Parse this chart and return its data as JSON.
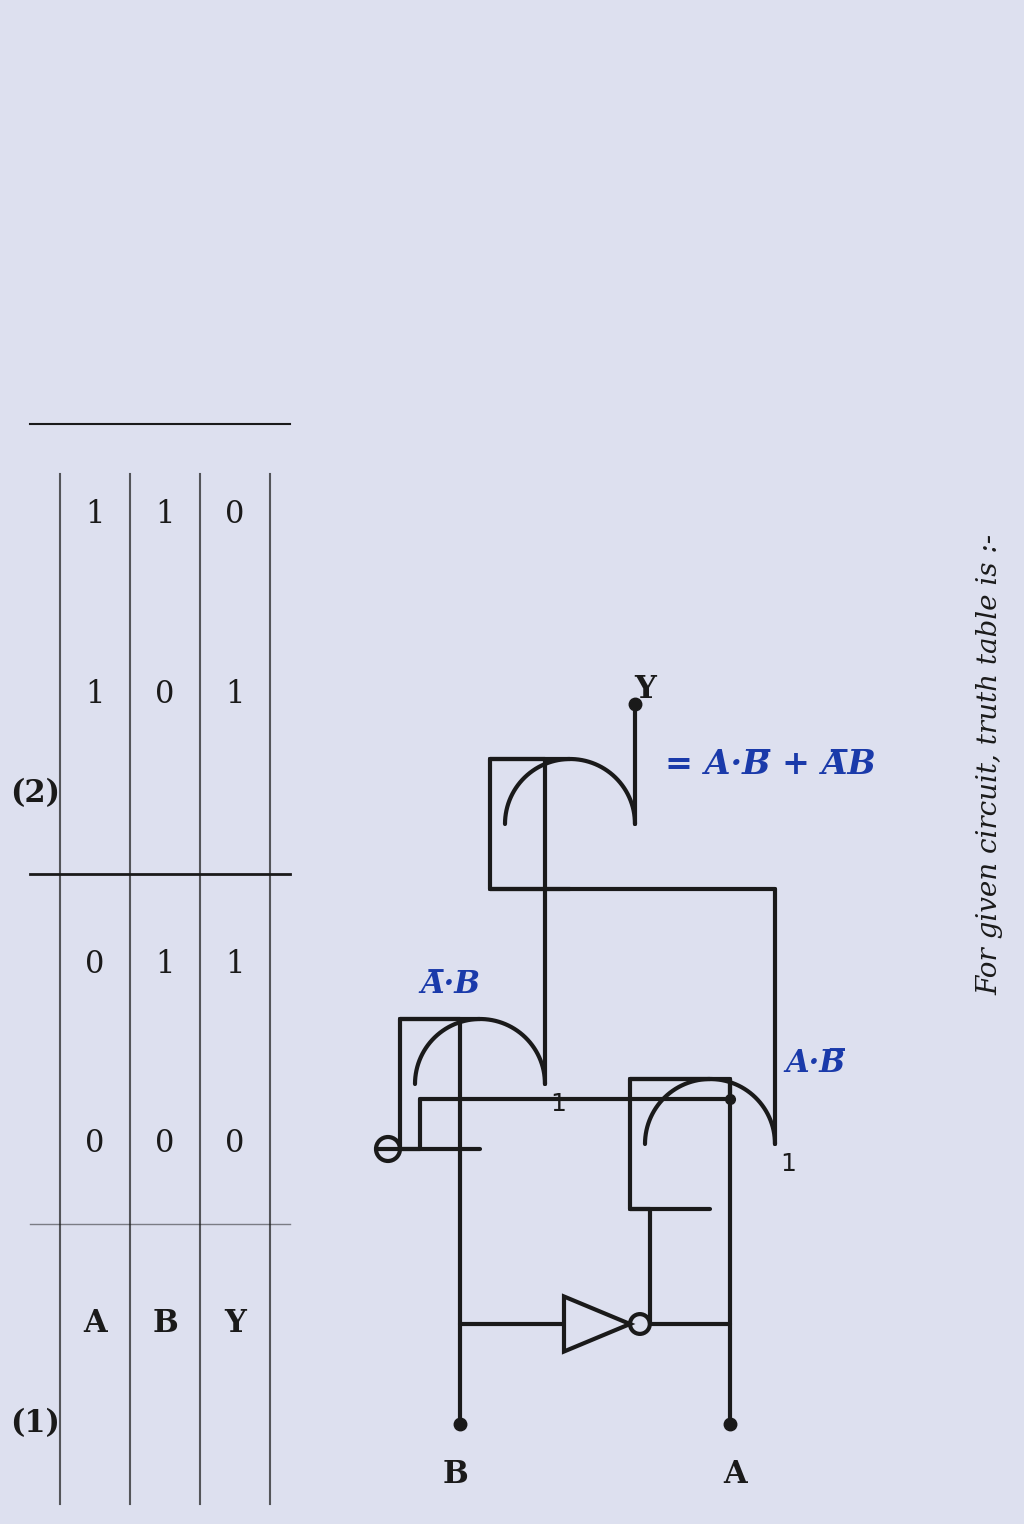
{
  "bg_color": "#cfd3e8",
  "paper_color": "#dde0ef",
  "black": "#1a1a1a",
  "blue": "#1a3aaa",
  "title": "For given circuit, truth table is :-",
  "label_A": "A",
  "label_B": "B",
  "label_Y": "Y",
  "label_1": "1",
  "gate1_label": "A̅·B",
  "gate2_label": "A·B̅",
  "output_expr": "A·B̅ + A̅B",
  "section1": "(1)",
  "section2": "(2)",
  "truth_header": [
    "A",
    "B",
    "Y"
  ],
  "truth_rows": [
    [
      0,
      0,
      0
    ],
    [
      0,
      1,
      1
    ],
    [
      1,
      0,
      1
    ],
    [
      1,
      1,
      0
    ]
  ]
}
